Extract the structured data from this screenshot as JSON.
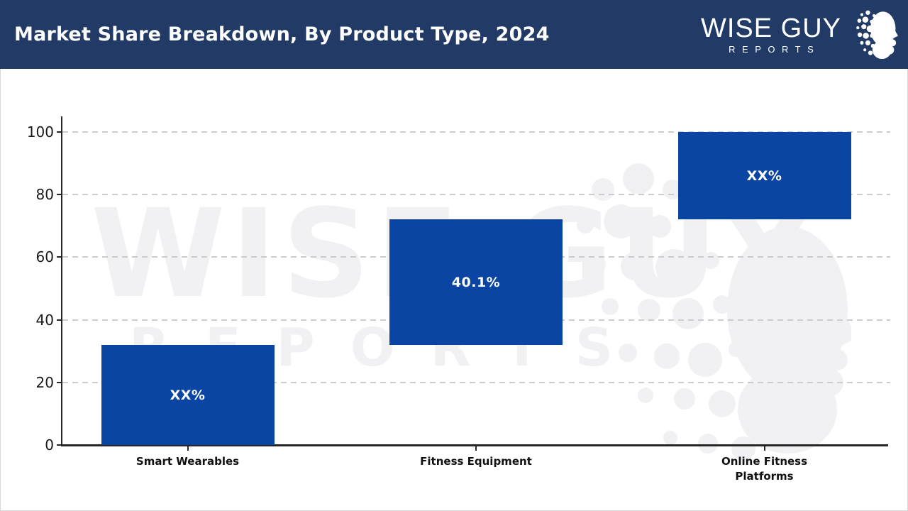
{
  "header": {
    "title": "Market Share Breakdown, By Product Type, 2024",
    "logo": {
      "wordmark": "WISE GUY",
      "subtext": "REPORTS"
    }
  },
  "watermark": {
    "wordmark": "WISE GUY",
    "subtext": "REPORTS"
  },
  "chart_data": {
    "type": "bar",
    "subtype": "floating-waterfall-bars",
    "title": "Market Share Breakdown, By Product Type, 2024",
    "categories": [
      "Smart Wearables",
      "Fitness Equipment",
      "Online Fitness Platforms"
    ],
    "series": [
      {
        "category": "Smart Wearables",
        "start": 0,
        "end": 31.9,
        "label": "XX%"
      },
      {
        "category": "Fitness Equipment",
        "start": 31.9,
        "end": 72.0,
        "label": "40.1%"
      },
      {
        "category": "Online Fitness Platforms",
        "start": 72.0,
        "end": 99.9,
        "label": "XX%"
      }
    ],
    "xlabel": "",
    "ylabel": "",
    "ylim": [
      0,
      100
    ],
    "yticks": [
      0,
      20,
      40,
      60,
      80,
      100
    ],
    "grid": "horizontal-dashed",
    "legend": "none",
    "bar_color": "#0b45a3",
    "bar_label_color": "#ffffff"
  },
  "colors": {
    "header_bg": "#213a66",
    "header_text": "#ffffff",
    "page_bg": "#ffffff",
    "page_border": "#d9d9d9",
    "grid": "#cccccc",
    "axis": "#262626",
    "tick_label": "#1a1a1a",
    "watermark": "#f1f1f4"
  }
}
